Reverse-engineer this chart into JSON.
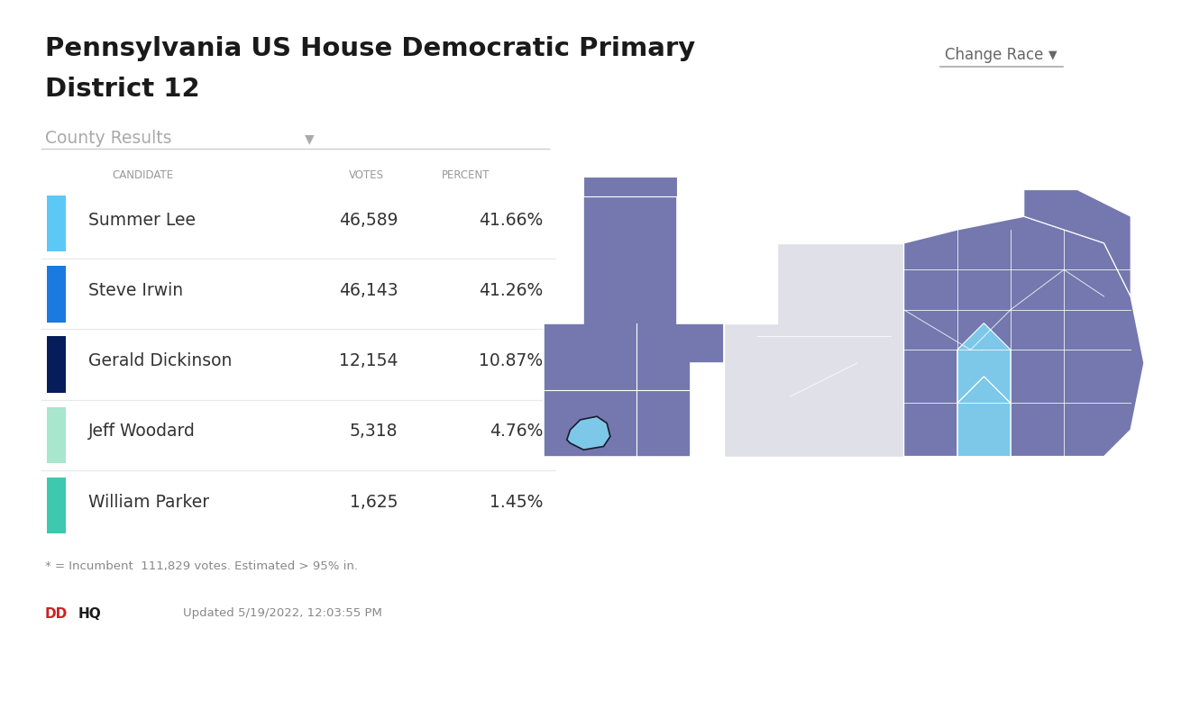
{
  "title_line1": "Pennsylvania US House Democratic Primary",
  "title_line2": "District 12",
  "subtitle": "County Results",
  "change_race_label": "Change Race",
  "col_headers": [
    "CANDIDATE",
    "VOTES",
    "PERCENT"
  ],
  "candidates": [
    {
      "name": "Summer Lee",
      "votes": "46,589",
      "percent": "41.66%",
      "color": "#5BC8F5"
    },
    {
      "name": "Steve Irwin",
      "votes": "46,143",
      "percent": "41.26%",
      "color": "#1A7AE0"
    },
    {
      "name": "Gerald Dickinson",
      "votes": "12,154",
      "percent": "10.87%",
      "color": "#071D5B"
    },
    {
      "name": "Jeff Woodard",
      "votes": "5,318",
      "percent": "4.76%",
      "color": "#A8E6CE"
    },
    {
      "name": "William Parker",
      "votes": "1,625",
      "percent": "1.45%",
      "color": "#3DC9B0"
    }
  ],
  "footer_line1": "* = Incumbent  111,829 votes. Estimated > 95% in.",
  "footer_line2": "Updated 5/19/2022, 12:03:55 PM",
  "bg_color": "#ffffff",
  "title_color": "#1a1a1a",
  "header_color": "#999999",
  "candidate_name_color": "#333333",
  "votes_color": "#333333",
  "percent_color": "#333333",
  "footer_color": "#888888",
  "divider_color": "#cccccc",
  "subtitle_color": "#aaaaaa",
  "change_race_color": "#666666",
  "map_purple": "#7478AE",
  "map_gray": "#E0E0E8",
  "map_light_blue": "#7DC8E8",
  "map_bg": "#ffffff"
}
